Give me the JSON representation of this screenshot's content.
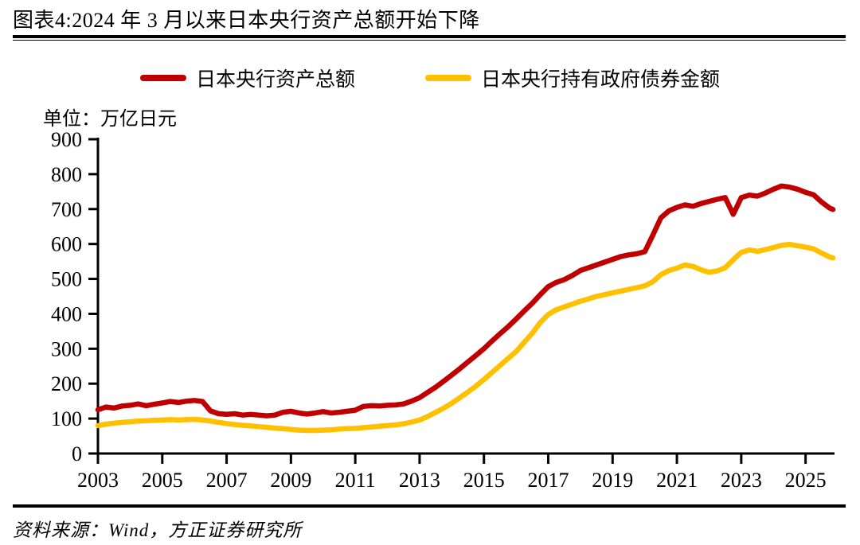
{
  "title": "图表4:2024 年 3 月以来日本央行资产总额开始下降",
  "unit_label": "单位：万亿日元",
  "source": "资料来源：Wind，方正证券研究所",
  "legend": [
    {
      "label": "日本央行资产总额",
      "color": "#C00000"
    },
    {
      "label": "日本央行持有政府债券金额",
      "color": "#FFC000"
    }
  ],
  "chart_data": {
    "type": "line",
    "title": "2024年3月以来日本央行资产总额开始下降",
    "ylabel": "万亿日元",
    "xlim": [
      2003,
      2025.9
    ],
    "ylim": [
      0,
      900
    ],
    "yticks": [
      0,
      100,
      200,
      300,
      400,
      500,
      600,
      700,
      800,
      900
    ],
    "xticks": [
      2003,
      2005,
      2007,
      2009,
      2011,
      2013,
      2015,
      2017,
      2019,
      2021,
      2023,
      2025
    ],
    "grid": false,
    "legend_position": "top",
    "series": [
      {
        "name": "日本央行资产总额",
        "color": "#C00000",
        "points": [
          [
            2003.0,
            125
          ],
          [
            2003.25,
            133
          ],
          [
            2003.5,
            130
          ],
          [
            2003.75,
            136
          ],
          [
            2004.0,
            138
          ],
          [
            2004.25,
            142
          ],
          [
            2004.5,
            137
          ],
          [
            2004.75,
            141
          ],
          [
            2005.0,
            145
          ],
          [
            2005.25,
            149
          ],
          [
            2005.5,
            146
          ],
          [
            2005.75,
            150
          ],
          [
            2006.0,
            152
          ],
          [
            2006.25,
            149
          ],
          [
            2006.5,
            122
          ],
          [
            2006.75,
            114
          ],
          [
            2007.0,
            112
          ],
          [
            2007.25,
            114
          ],
          [
            2007.5,
            110
          ],
          [
            2007.75,
            112
          ],
          [
            2008.0,
            110
          ],
          [
            2008.25,
            108
          ],
          [
            2008.5,
            110
          ],
          [
            2008.75,
            118
          ],
          [
            2009.0,
            121
          ],
          [
            2009.25,
            116
          ],
          [
            2009.5,
            113
          ],
          [
            2009.75,
            116
          ],
          [
            2010.0,
            120
          ],
          [
            2010.25,
            116
          ],
          [
            2010.5,
            118
          ],
          [
            2010.75,
            121
          ],
          [
            2011.0,
            124
          ],
          [
            2011.25,
            135
          ],
          [
            2011.5,
            137
          ],
          [
            2011.75,
            136
          ],
          [
            2012.0,
            138
          ],
          [
            2012.25,
            139
          ],
          [
            2012.5,
            142
          ],
          [
            2012.75,
            150
          ],
          [
            2013.0,
            160
          ],
          [
            2013.25,
            175
          ],
          [
            2013.5,
            190
          ],
          [
            2013.75,
            207
          ],
          [
            2014.0,
            225
          ],
          [
            2014.25,
            243
          ],
          [
            2014.5,
            262
          ],
          [
            2014.75,
            281
          ],
          [
            2015.0,
            300
          ],
          [
            2015.25,
            322
          ],
          [
            2015.5,
            343
          ],
          [
            2015.75,
            363
          ],
          [
            2016.0,
            385
          ],
          [
            2016.25,
            408
          ],
          [
            2016.5,
            430
          ],
          [
            2016.75,
            455
          ],
          [
            2017.0,
            478
          ],
          [
            2017.25,
            490
          ],
          [
            2017.5,
            498
          ],
          [
            2017.75,
            510
          ],
          [
            2018.0,
            524
          ],
          [
            2018.25,
            532
          ],
          [
            2018.5,
            540
          ],
          [
            2018.75,
            548
          ],
          [
            2019.0,
            556
          ],
          [
            2019.25,
            564
          ],
          [
            2019.5,
            569
          ],
          [
            2019.75,
            572
          ],
          [
            2020.0,
            578
          ],
          [
            2020.25,
            625
          ],
          [
            2020.5,
            675
          ],
          [
            2020.75,
            695
          ],
          [
            2021.0,
            705
          ],
          [
            2021.25,
            712
          ],
          [
            2021.5,
            708
          ],
          [
            2021.75,
            716
          ],
          [
            2022.0,
            722
          ],
          [
            2022.25,
            728
          ],
          [
            2022.5,
            733
          ],
          [
            2022.75,
            685
          ],
          [
            2023.0,
            733
          ],
          [
            2023.25,
            740
          ],
          [
            2023.5,
            737
          ],
          [
            2023.75,
            746
          ],
          [
            2024.0,
            757
          ],
          [
            2024.25,
            766
          ],
          [
            2024.5,
            763
          ],
          [
            2024.75,
            757
          ],
          [
            2025.0,
            748
          ],
          [
            2025.25,
            741
          ],
          [
            2025.5,
            720
          ],
          [
            2025.75,
            703
          ],
          [
            2025.85,
            699
          ]
        ]
      },
      {
        "name": "日本央行持有政府债券金额",
        "color": "#FFC000",
        "points": [
          [
            2003.0,
            80
          ],
          [
            2003.25,
            84
          ],
          [
            2003.5,
            87
          ],
          [
            2003.75,
            89
          ],
          [
            2004.0,
            91
          ],
          [
            2004.25,
            93
          ],
          [
            2004.5,
            94
          ],
          [
            2004.75,
            95
          ],
          [
            2005.0,
            96
          ],
          [
            2005.25,
            97
          ],
          [
            2005.5,
            96
          ],
          [
            2005.75,
            97
          ],
          [
            2006.0,
            98
          ],
          [
            2006.25,
            96
          ],
          [
            2006.5,
            93
          ],
          [
            2006.75,
            89
          ],
          [
            2007.0,
            86
          ],
          [
            2007.25,
            83
          ],
          [
            2007.5,
            81
          ],
          [
            2007.75,
            79
          ],
          [
            2008.0,
            77
          ],
          [
            2008.25,
            75
          ],
          [
            2008.5,
            73
          ],
          [
            2008.75,
            71
          ],
          [
            2009.0,
            69
          ],
          [
            2009.25,
            67
          ],
          [
            2009.5,
            66
          ],
          [
            2009.75,
            66
          ],
          [
            2010.0,
            67
          ],
          [
            2010.25,
            68
          ],
          [
            2010.5,
            70
          ],
          [
            2010.75,
            71
          ],
          [
            2011.0,
            72
          ],
          [
            2011.25,
            74
          ],
          [
            2011.5,
            76
          ],
          [
            2011.75,
            78
          ],
          [
            2012.0,
            80
          ],
          [
            2012.25,
            82
          ],
          [
            2012.5,
            85
          ],
          [
            2012.75,
            90
          ],
          [
            2013.0,
            96
          ],
          [
            2013.25,
            106
          ],
          [
            2013.5,
            118
          ],
          [
            2013.75,
            130
          ],
          [
            2014.0,
            144
          ],
          [
            2014.25,
            160
          ],
          [
            2014.5,
            176
          ],
          [
            2014.75,
            193
          ],
          [
            2015.0,
            212
          ],
          [
            2015.25,
            232
          ],
          [
            2015.5,
            252
          ],
          [
            2015.75,
            272
          ],
          [
            2016.0,
            292
          ],
          [
            2016.25,
            318
          ],
          [
            2016.5,
            344
          ],
          [
            2016.75,
            375
          ],
          [
            2017.0,
            398
          ],
          [
            2017.25,
            412
          ],
          [
            2017.5,
            420
          ],
          [
            2017.75,
            428
          ],
          [
            2018.0,
            436
          ],
          [
            2018.25,
            443
          ],
          [
            2018.5,
            450
          ],
          [
            2018.75,
            455
          ],
          [
            2019.0,
            460
          ],
          [
            2019.25,
            465
          ],
          [
            2019.5,
            470
          ],
          [
            2019.75,
            475
          ],
          [
            2020.0,
            480
          ],
          [
            2020.25,
            492
          ],
          [
            2020.5,
            512
          ],
          [
            2020.75,
            524
          ],
          [
            2021.0,
            531
          ],
          [
            2021.25,
            540
          ],
          [
            2021.5,
            536
          ],
          [
            2021.75,
            526
          ],
          [
            2022.0,
            519
          ],
          [
            2022.25,
            523
          ],
          [
            2022.5,
            532
          ],
          [
            2022.75,
            555
          ],
          [
            2023.0,
            576
          ],
          [
            2023.25,
            583
          ],
          [
            2023.5,
            579
          ],
          [
            2023.75,
            584
          ],
          [
            2024.0,
            590
          ],
          [
            2024.25,
            596
          ],
          [
            2024.5,
            599
          ],
          [
            2024.75,
            595
          ],
          [
            2025.0,
            591
          ],
          [
            2025.25,
            586
          ],
          [
            2025.5,
            574
          ],
          [
            2025.75,
            563
          ],
          [
            2025.85,
            560
          ]
        ]
      }
    ]
  }
}
